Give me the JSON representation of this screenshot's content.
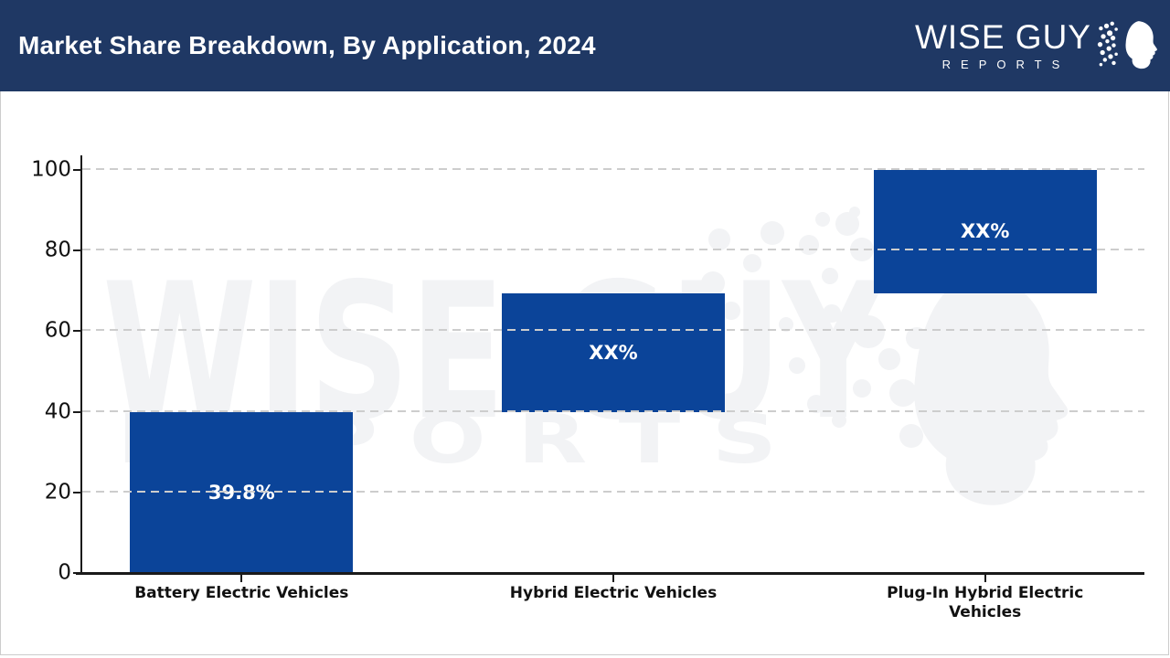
{
  "header": {
    "title": "Market Share Breakdown, By Application, 2024",
    "logo": {
      "line1": "WISE GUY",
      "line2": "REPORTS"
    }
  },
  "watermark": {
    "line1": "WISE GUY",
    "line2": "R E P O R T S"
  },
  "colors": {
    "header_bg": "#1f3864",
    "bar": "#0b4499",
    "axis": "#1a1a1a",
    "grid": "#cdcdcd",
    "watermark": "#f2f3f5",
    "frame_border": "#cccccc",
    "bar_label_text": "#ffffff"
  },
  "chart_data": {
    "type": "bar",
    "subtype": "floating-waterfall",
    "title": "Market Share Breakdown, By Application, 2024",
    "categories": [
      "Battery Electric Vehicles",
      "Hybrid Electric Vehicles",
      "Plug-In Hybrid Electric Vehicles"
    ],
    "series": [
      {
        "category": "Battery Electric Vehicles",
        "start": 0,
        "end": 39.8,
        "label": "39.8%"
      },
      {
        "category": "Hybrid Electric Vehicles",
        "start": 39.8,
        "end": 69.4,
        "label": "XX%"
      },
      {
        "category": "Plug-In Hybrid Electric Vehicles",
        "start": 69.4,
        "end": 100,
        "label": "XX%"
      }
    ],
    "ylim": [
      0,
      100
    ],
    "yticks": [
      0,
      20,
      40,
      60,
      80,
      100
    ],
    "xlabel": "",
    "ylabel": "",
    "grid": "dashed-horizontal",
    "legend": "none"
  }
}
